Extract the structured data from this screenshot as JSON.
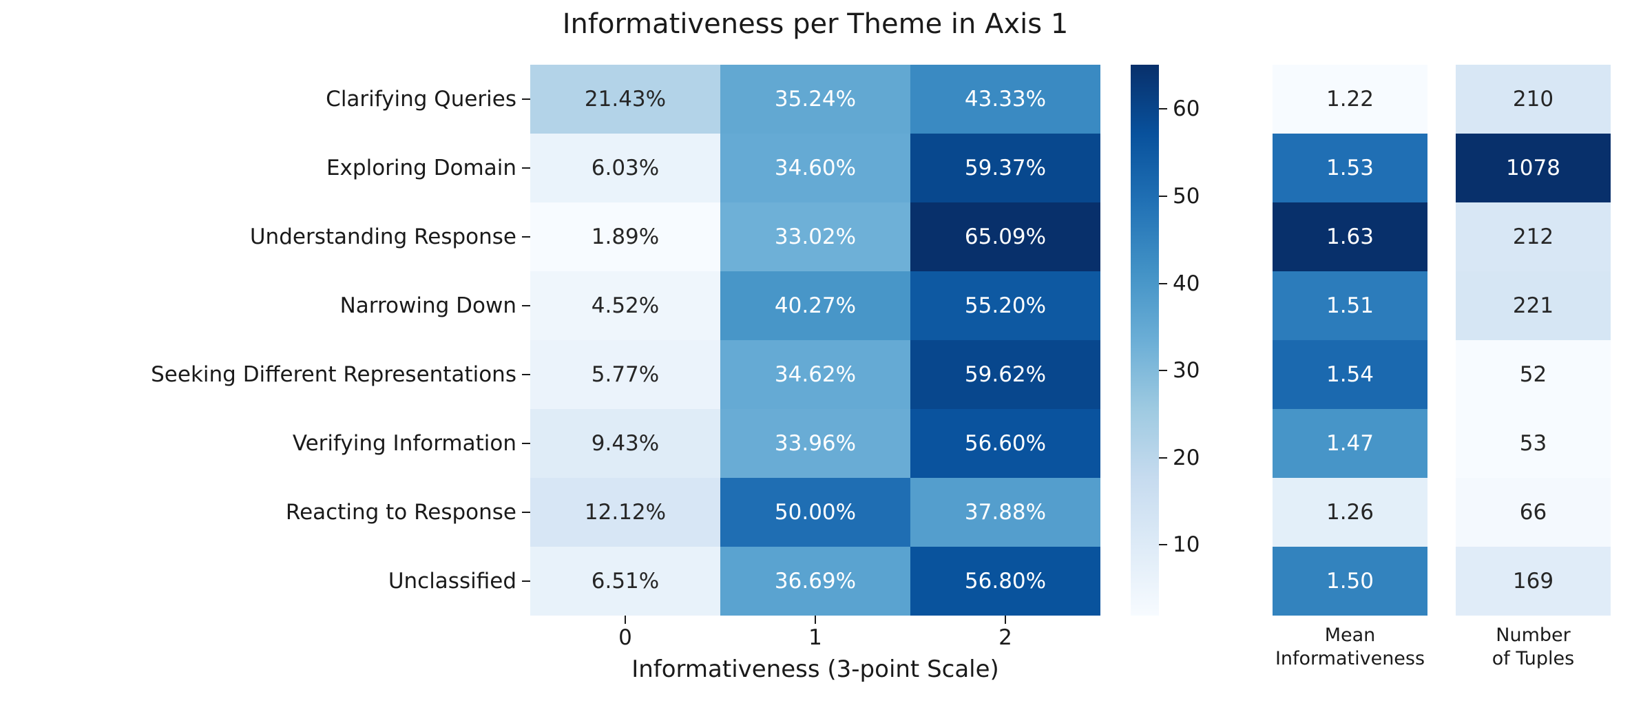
{
  "colors": {
    "background": "#ffffff",
    "axis_text": "#1a1a1a",
    "annotation_dark": "#262626",
    "annotation_light": "#ffffff"
  },
  "chart_data": {
    "type": "heatmap",
    "title": "Informativeness per Theme in Axis 1",
    "xlabel": "Informativeness (3-point Scale)",
    "x_tick_labels": [
      "0",
      "1",
      "2"
    ],
    "rows": [
      "Clarifying Queries",
      "Exploring Domain",
      "Understanding Response",
      "Narrowing Down",
      "Seeking Different Representations",
      "Verifying Information",
      "Reacting to Response",
      "Unclassified"
    ],
    "colormap": "Blues",
    "colormap_stops": [
      "#f7fbff",
      "#deebf7",
      "#c6dbef",
      "#9ecae1",
      "#6baed6",
      "#4292c6",
      "#2171b5",
      "#08519c",
      "#08306b"
    ],
    "main": {
      "values": [
        [
          21.43,
          35.24,
          43.33
        ],
        [
          6.03,
          34.6,
          59.37
        ],
        [
          1.89,
          33.02,
          65.09
        ],
        [
          4.52,
          40.27,
          55.2
        ],
        [
          5.77,
          34.62,
          59.62
        ],
        [
          9.43,
          33.96,
          56.6
        ],
        [
          12.12,
          50.0,
          37.88
        ],
        [
          6.51,
          36.69,
          56.8
        ]
      ],
      "labels": [
        [
          "21.43%",
          "35.24%",
          "43.33%"
        ],
        [
          "6.03%",
          "34.60%",
          "59.37%"
        ],
        [
          "1.89%",
          "33.02%",
          "65.09%"
        ],
        [
          "4.52%",
          "40.27%",
          "55.20%"
        ],
        [
          "5.77%",
          "34.62%",
          "59.62%"
        ],
        [
          "9.43%",
          "33.96%",
          "56.60%"
        ],
        [
          "12.12%",
          "50.00%",
          "37.88%"
        ],
        [
          "6.51%",
          "36.69%",
          "56.80%"
        ]
      ],
      "vmin": 1.89,
      "vmax": 65.09
    },
    "colorbar": {
      "ticks": [
        10,
        20,
        30,
        40,
        50,
        60
      ],
      "vmin": 1.89,
      "vmax": 65.09
    },
    "mean_column": {
      "header": [
        "Mean",
        "Informativeness"
      ],
      "values": [
        1.22,
        1.53,
        1.63,
        1.51,
        1.54,
        1.47,
        1.26,
        1.5
      ],
      "labels": [
        "1.22",
        "1.53",
        "1.63",
        "1.51",
        "1.54",
        "1.47",
        "1.26",
        "1.50"
      ],
      "vmin": 1.22,
      "vmax": 1.63
    },
    "tuples_column": {
      "header": [
        "Number",
        "of Tuples"
      ],
      "values": [
        210,
        1078,
        212,
        221,
        52,
        53,
        66,
        169
      ],
      "labels": [
        "210",
        "1078",
        "212",
        "221",
        "52",
        "53",
        "66",
        "169"
      ],
      "vmin": 52,
      "vmax": 1078
    }
  }
}
